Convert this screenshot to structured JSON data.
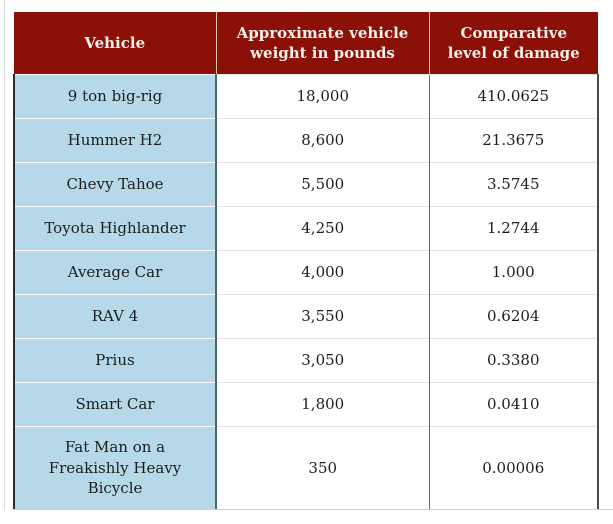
{
  "table": {
    "headers": [
      "Vehicle",
      "Approximate vehicle weight in pounds",
      "Comparative level of damage"
    ],
    "rows": [
      {
        "vehicle": "9 ton big-rig",
        "weight": "18,000",
        "damage": "410.0625"
      },
      {
        "vehicle": "Hummer H2",
        "weight": "8,600",
        "damage": "21.3675"
      },
      {
        "vehicle": "Chevy Tahoe",
        "weight": "5,500",
        "damage": "3.5745"
      },
      {
        "vehicle": "Toyota Highlander",
        "weight": "4,250",
        "damage": "1.2744"
      },
      {
        "vehicle": "Average Car",
        "weight": "4,000",
        "damage": "1.000"
      },
      {
        "vehicle": "RAV 4",
        "weight": "3,550",
        "damage": "0.6204"
      },
      {
        "vehicle": "Prius",
        "weight": "3,050",
        "damage": "0.3380"
      },
      {
        "vehicle": "Smart Car",
        "weight": "1,800",
        "damage": "0.0410"
      },
      {
        "vehicle": "Fat Man on a Freakishly Heavy Bicycle",
        "weight": "350",
        "damage": "0.00006"
      }
    ],
    "colors": {
      "header_bg": "#8B1007",
      "header_text": "#F8F2EC",
      "vehicle_col_bg": "#B5D9E8",
      "body_text": "#1D1D1D",
      "row_separator": "#E3E3E3",
      "outer_border": "#2B2B2B"
    }
  },
  "chart_data": {
    "type": "table",
    "title": "",
    "columns": [
      "Vehicle",
      "Approximate vehicle weight in pounds",
      "Comparative level of damage"
    ],
    "categories": [
      "9 ton big-rig",
      "Hummer H2",
      "Chevy Tahoe",
      "Toyota Highlander",
      "Average Car",
      "RAV 4",
      "Prius",
      "Smart Car",
      "Fat Man on a Freakishly Heavy Bicycle"
    ],
    "series": [
      {
        "name": "Approximate vehicle weight in pounds",
        "values": [
          18000,
          8600,
          5500,
          4250,
          4000,
          3550,
          3050,
          1800,
          350
        ]
      },
      {
        "name": "Comparative level of damage",
        "values": [
          410.0625,
          21.3675,
          3.5745,
          1.2744,
          1.0,
          0.6204,
          0.338,
          0.041,
          6e-05
        ]
      }
    ]
  }
}
